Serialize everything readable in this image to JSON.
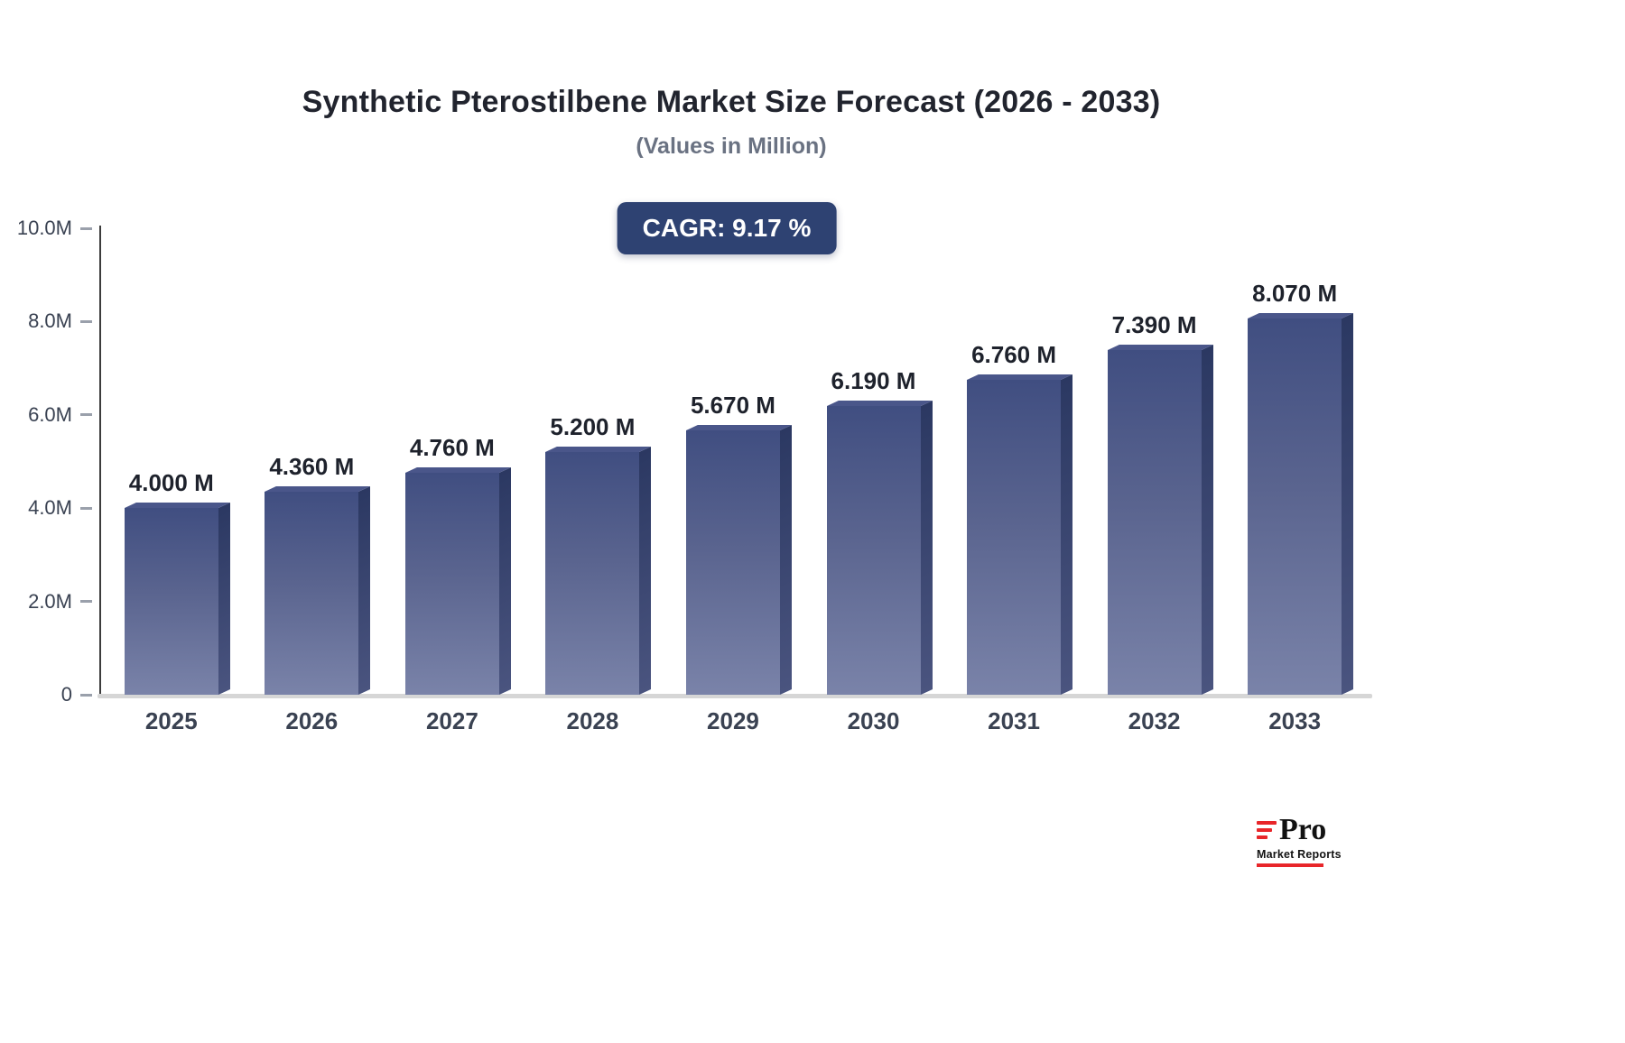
{
  "title": "Synthetic Pterostilbene Market Size Forecast (2026 - 2033)",
  "subtitle": "(Values in Million)",
  "badge": {
    "text": "CAGR: 9.17 %",
    "bg": "#2e4272",
    "fg": "#ffffff"
  },
  "chart_data": {
    "type": "bar",
    "categories": [
      "2025",
      "2026",
      "2027",
      "2028",
      "2029",
      "2030",
      "2031",
      "2032",
      "2033"
    ],
    "values": [
      4.0,
      4.36,
      4.76,
      5.2,
      5.67,
      6.19,
      6.76,
      7.39,
      8.07
    ],
    "value_labels": [
      "4.000 M",
      "4.360 M",
      "4.760 M",
      "5.200 M",
      "5.670 M",
      "6.190 M",
      "6.760 M",
      "7.390 M",
      "8.070 M"
    ],
    "title": "Synthetic Pterostilbene Market Size Forecast (2026 - 2033)",
    "xlabel": "",
    "ylabel": "",
    "ylim": [
      0,
      10
    ],
    "y_ticks": [
      "0",
      "2.0M",
      "4.0M",
      "6.0M",
      "8.0M",
      "10.0M"
    ],
    "grid": false,
    "legend": false,
    "bar_color_top": "#404e81",
    "bar_color_bottom": "#7a83a9",
    "bar_side_color": "#2b3862"
  },
  "logo": {
    "main": "Pro",
    "sub": "Market Reports",
    "accent": "#e8262a"
  }
}
